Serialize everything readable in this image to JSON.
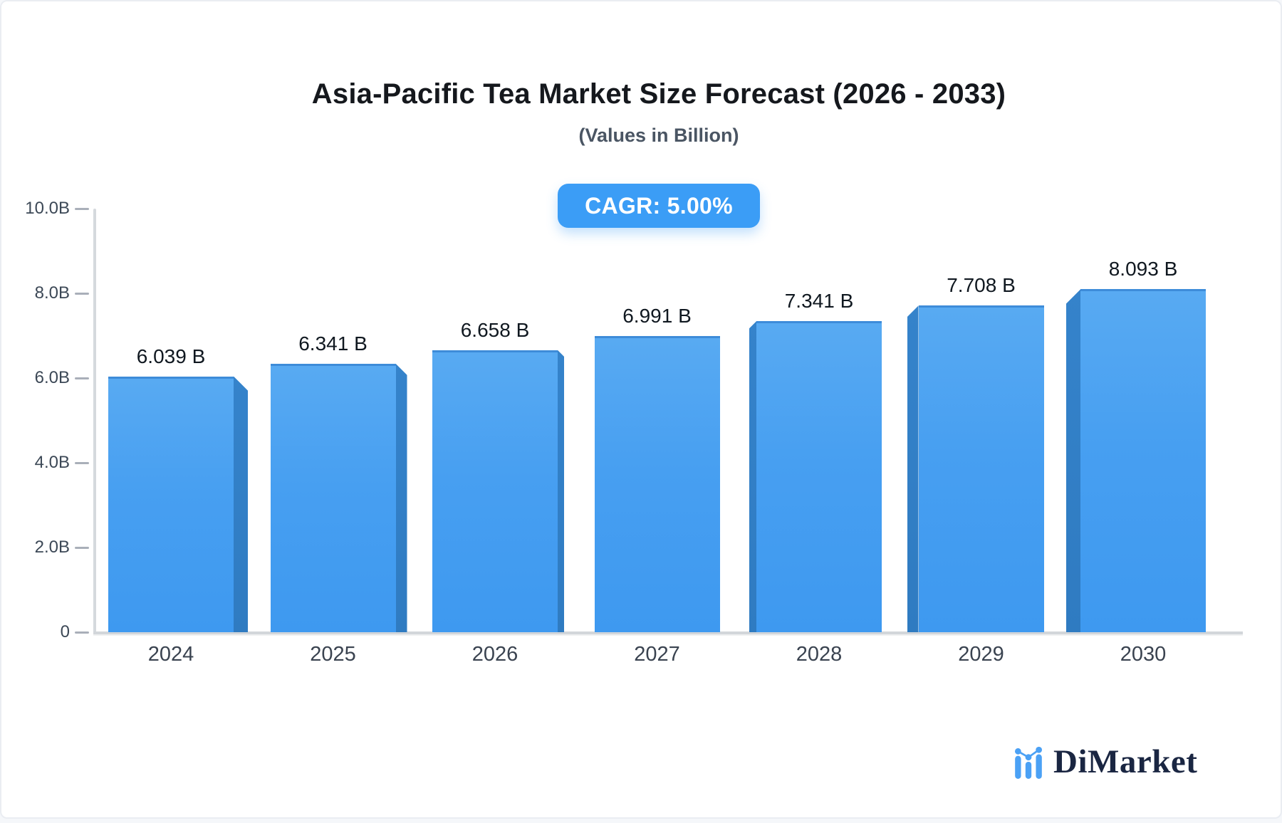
{
  "header": {
    "title": "Asia-Pacific Tea Market Size Forecast (2026 - 2033)",
    "subtitle": "(Values in Billion)",
    "cagr_badge": "CAGR: 5.00%"
  },
  "chart_data": {
    "type": "bar",
    "title": "Asia-Pacific Tea Market Size Forecast (2026 - 2033)",
    "subtitle": "(Values in Billion)",
    "categories": [
      "2024",
      "2025",
      "2026",
      "2027",
      "2028",
      "2029",
      "2030"
    ],
    "values": [
      6.039,
      6.341,
      6.658,
      6.991,
      7.341,
      7.708,
      8.093
    ],
    "value_labels": [
      "6.039 B",
      "6.341 B",
      "6.658 B",
      "6.991 B",
      "7.341 B",
      "7.708 B",
      "8.093 B"
    ],
    "y_tick_labels": [
      "10.0B",
      "8.0B",
      "6.0B",
      "4.0B",
      "2.0B",
      "0"
    ],
    "y_tick_values": [
      10,
      8,
      6,
      4,
      2,
      0
    ],
    "ylim": [
      0,
      10
    ],
    "xlabel": "",
    "ylabel": "",
    "grid": false,
    "legend": "none",
    "cagr": "5.00%"
  },
  "footer": {
    "logo_text": "DiMarket"
  },
  "colors": {
    "accent_blue": "#3B9DF6",
    "bar_face_top": "#58AAF2",
    "bar_face_bottom": "#3E99F0",
    "bar_side": "#2F7BC1",
    "axis_gray": "#D2D6DA",
    "title_text": "#15181D",
    "subtitle_text": "#4A5563",
    "logo_navy": "#1A2642"
  }
}
